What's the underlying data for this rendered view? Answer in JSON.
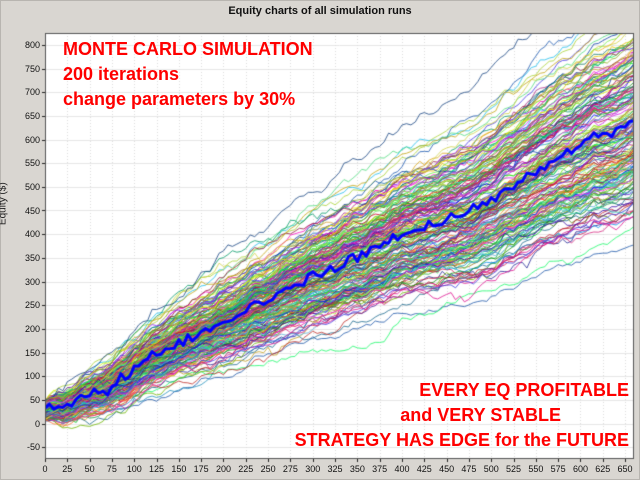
{
  "window": {
    "title": "Equity charts of all simulation runs"
  },
  "chart_data": {
    "type": "line",
    "title": "Equity charts of all simulation runs",
    "xlabel": "",
    "ylabel": "Equity ($)",
    "xlim": [
      0,
      660
    ],
    "ylim": [
      -75,
      825
    ],
    "x_ticks": [
      0,
      25,
      50,
      75,
      100,
      125,
      150,
      175,
      200,
      225,
      250,
      275,
      300,
      325,
      350,
      375,
      400,
      425,
      450,
      475,
      500,
      525,
      550,
      575,
      600,
      625,
      650
    ],
    "y_ticks": [
      -50,
      0,
      50,
      100,
      150,
      200,
      250,
      300,
      350,
      400,
      450,
      500,
      550,
      600,
      650,
      700,
      750,
      800
    ],
    "grid": true,
    "legend": false,
    "series_count": 200,
    "palette_style": "random-bright-multicolor",
    "highlight_series": {
      "name": "average-equity-curve",
      "color": "#0000ff",
      "width": 3
    },
    "start_value": 25,
    "end_value_range": [
      300,
      780
    ],
    "mean_path_points": {
      "x": [
        0,
        50,
        100,
        150,
        200,
        250,
        300,
        350,
        400,
        450,
        500,
        550,
        600,
        650
      ],
      "y": [
        25,
        55,
        95,
        140,
        200,
        255,
        300,
        345,
        390,
        455,
        480,
        540,
        595,
        615
      ]
    },
    "simulation": {
      "iterations": 200,
      "parameter_change_percent": 30
    }
  },
  "annotations": {
    "top_left": {
      "color": "#ff0000",
      "lines": [
        "MONTE CARLO SIMULATION",
        "200 iterations",
        "change parameters by 30%"
      ]
    },
    "bottom_right": {
      "color": "#ff0000",
      "lines": [
        "EVERY EQ PROFITABLE",
        "and VERY STABLE",
        "STRATEGY HAS EDGE for the FUTURE"
      ]
    }
  }
}
